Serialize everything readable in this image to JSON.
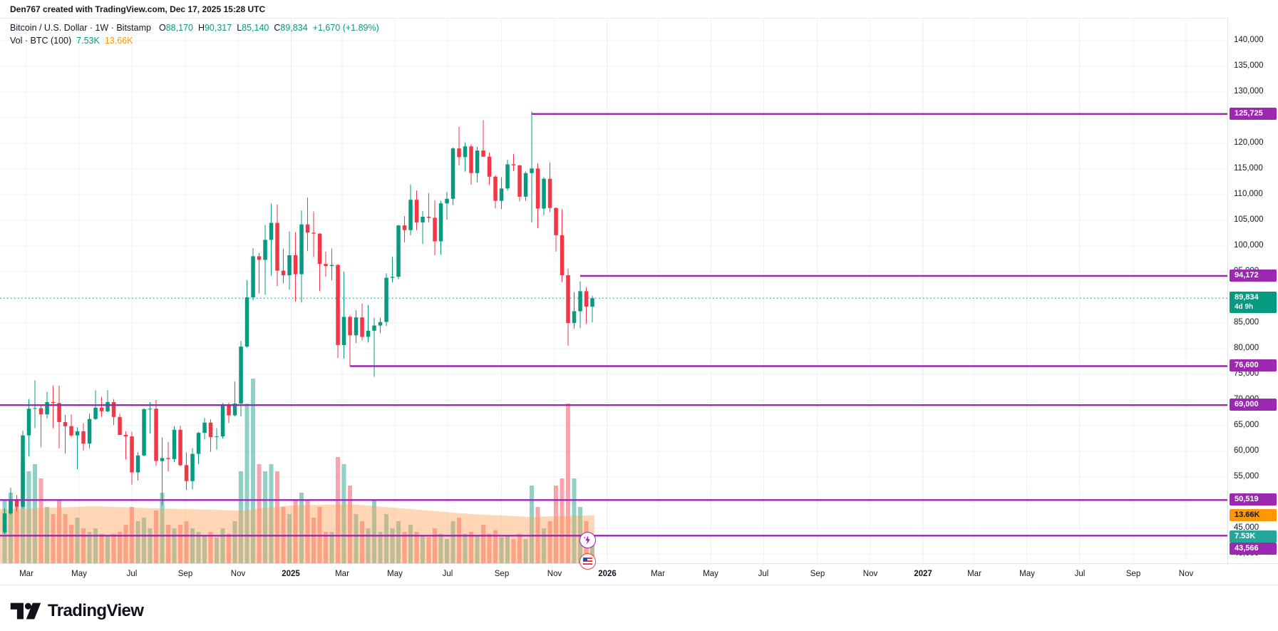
{
  "attribution": "Den767 created with TradingView.com, Dec 17, 2025 15:28 UTC",
  "legend": {
    "title": "Bitcoin / U.S. Dollar · 1W · Bitstamp",
    "o_label": "O",
    "o_value": "88,170",
    "h_label": "H",
    "h_value": "90,317",
    "l_label": "L",
    "l_value": "85,140",
    "c_label": "C",
    "c_value": "89,834",
    "change": "+1,670 (+1.89%)",
    "volume_label": "Vol · BTC (100)",
    "volume_value": "7.53K",
    "volume_ma_value": "13.66K"
  },
  "logo": {
    "text": "TradingView"
  },
  "colors": {
    "up": "#089981",
    "down": "#F23645",
    "vol_up": "rgba(8,153,129,0.45)",
    "vol_down": "rgba(242,54,69,0.45)",
    "vol_ma_area": "rgba(255,160,80,0.42)",
    "purple": "#9C27B0",
    "orange": "#FF9800",
    "teal_badge": "#26A69A",
    "grid": "#f0f2f7",
    "grid_strong": "#e8ebf2",
    "text": "#131722"
  },
  "price_axis": {
    "ticks": [
      {
        "label": "140,000",
        "price": 140
      },
      {
        "label": "135,000",
        "price": 135
      },
      {
        "label": "130,000",
        "price": 130
      },
      {
        "label": "120,000",
        "price": 120
      },
      {
        "label": "115,000",
        "price": 115
      },
      {
        "label": "110,000",
        "price": 110
      },
      {
        "label": "105,000",
        "price": 105
      },
      {
        "label": "100,000",
        "price": 100
      },
      {
        "label": "95,000",
        "price": 95
      },
      {
        "label": "85,000",
        "price": 85
      },
      {
        "label": "80,000",
        "price": 80
      },
      {
        "label": "75,000",
        "price": 75
      },
      {
        "label": "70,000",
        "price": 70
      },
      {
        "label": "65,000",
        "price": 65
      },
      {
        "label": "60,000",
        "price": 60
      },
      {
        "label": "55,000",
        "price": 55
      },
      {
        "label": "45,000",
        "price": 45
      },
      {
        "label": "40,000",
        "price": 40
      }
    ],
    "line_badges": [
      {
        "label": "125,725",
        "price": 125.725
      },
      {
        "label": "94,172",
        "price": 94.172
      },
      {
        "label": "76,600",
        "price": 76.6
      },
      {
        "label": "69,000",
        "price": 69.0
      },
      {
        "label": "50,519",
        "price": 50.519
      }
    ],
    "last_badge": {
      "label": "89,834",
      "countdown": "4d 9h",
      "price": 89.834
    },
    "vol_badges": [
      {
        "label": "13.66K",
        "value": 13.66,
        "kind": "orange"
      },
      {
        "label": "7.53K",
        "value": 7.53,
        "kind": "teal"
      }
    ],
    "pushed_badge": {
      "label": "43,566",
      "price": 43.566,
      "y_override": 769
    }
  },
  "time_axis": {
    "ticks": [
      {
        "label": "Mar",
        "week": 8.57
      },
      {
        "label": "May",
        "week": 17.3
      },
      {
        "label": "Jul",
        "week": 26.0
      },
      {
        "label": "Sep",
        "week": 34.86
      },
      {
        "label": "Nov",
        "week": 43.57
      },
      {
        "label": "2025",
        "week": 52.29,
        "bold": true
      },
      {
        "label": "Mar",
        "week": 60.71
      },
      {
        "label": "May",
        "week": 69.43
      },
      {
        "label": "Jul",
        "week": 78.14
      },
      {
        "label": "Sep",
        "week": 87.0
      },
      {
        "label": "Nov",
        "week": 95.71
      },
      {
        "label": "2026",
        "week": 104.43,
        "bold": true
      },
      {
        "label": "Mar",
        "week": 112.86
      },
      {
        "label": "May",
        "week": 121.57
      },
      {
        "label": "Jul",
        "week": 130.29
      },
      {
        "label": "Sep",
        "week": 139.14
      },
      {
        "label": "Nov",
        "week": 147.86
      },
      {
        "label": "2027",
        "week": 156.57,
        "bold": true
      },
      {
        "label": "Mar",
        "week": 165.0
      },
      {
        "label": "May",
        "week": 173.71
      },
      {
        "label": "Jul",
        "week": 182.43
      },
      {
        "label": "Sep",
        "week": 191.29
      },
      {
        "label": "Nov",
        "week": 200.0
      }
    ]
  },
  "event_icons": [
    {
      "name": "events-lightning-icon",
      "week": 101.2,
      "glyph": "⚡"
    },
    {
      "name": "us-economic-event-icon",
      "week": 101.2
    }
  ],
  "chart_data": {
    "type": "candlestick",
    "title": "Bitcoin / U.S. Dollar",
    "interval": "1W",
    "exchange": "Bitstamp",
    "x_unit": "weeks since 2024-01-01 (Monday weekly bars)",
    "price_unit": "USD thousands",
    "ylim": [
      40,
      142
    ],
    "grid": true,
    "price_gridlines_step": 5,
    "current_price": {
      "value": 89.834,
      "label": "89,834",
      "countdown": "4d 9h"
    },
    "horizontal_lines": [
      {
        "price": 125.725,
        "label": "125,725",
        "start_week": 92
      },
      {
        "price": 94.172,
        "label": "94,172",
        "start_week": 100
      },
      {
        "price": 76.6,
        "label": "76,600",
        "start_week": 62
      },
      {
        "price": 69.0,
        "label": "69,000",
        "start_week": null
      },
      {
        "price": 50.519,
        "label": "50,519",
        "start_week": null
      },
      {
        "price": 43.566,
        "label": "43,566",
        "start_week": null
      }
    ],
    "volume_ma_points": [
      [
        5,
        15.4
      ],
      [
        20,
        16.2
      ],
      [
        30,
        15.6
      ],
      [
        44,
        15.0
      ],
      [
        52,
        16.4
      ],
      [
        62,
        16.8
      ],
      [
        72,
        15.4
      ],
      [
        82,
        14.0
      ],
      [
        92,
        13.2
      ],
      [
        98,
        13.5
      ],
      [
        102,
        13.66
      ]
    ],
    "candles_format": [
      "week",
      "open",
      "high",
      "low",
      "close",
      "volume_kBTC"
    ],
    "candles": [
      [
        5,
        44.2,
        48.9,
        43.9,
        47.9,
        18
      ],
      [
        6,
        47.9,
        52.9,
        47.6,
        50.7,
        20
      ],
      [
        7,
        50.7,
        51.5,
        48.3,
        49.2,
        16
      ],
      [
        8,
        49.2,
        64.0,
        48.9,
        63.1,
        29
      ],
      [
        9,
        63.1,
        70.2,
        59.0,
        68.3,
        26
      ],
      [
        10,
        68.3,
        73.8,
        64.5,
        68.4,
        28
      ],
      [
        11,
        68.4,
        68.9,
        60.8,
        67.2,
        24
      ],
      [
        12,
        67.2,
        71.6,
        66.4,
        69.6,
        16
      ],
      [
        13,
        69.6,
        72.8,
        64.5,
        69.4,
        14
      ],
      [
        14,
        69.4,
        72.8,
        60.6,
        65.7,
        18
      ],
      [
        15,
        65.7,
        67.1,
        59.6,
        64.9,
        14
      ],
      [
        16,
        64.9,
        67.2,
        62.8,
        63.1,
        11
      ],
      [
        17,
        63.1,
        64.7,
        56.5,
        63.9,
        13
      ],
      [
        18,
        63.9,
        65.5,
        60.2,
        61.5,
        10
      ],
      [
        19,
        61.5,
        67.3,
        60.6,
        66.3,
        9
      ],
      [
        20,
        66.3,
        71.9,
        66.1,
        68.5,
        10
      ],
      [
        21,
        68.5,
        70.6,
        66.7,
        67.8,
        8.5
      ],
      [
        22,
        67.8,
        71.9,
        67.6,
        69.6,
        8
      ],
      [
        23,
        69.6,
        70.2,
        65.1,
        66.7,
        8.5
      ],
      [
        24,
        66.7,
        67.3,
        63.4,
        63.2,
        9
      ],
      [
        25,
        63.2,
        63.9,
        58.4,
        62.9,
        11
      ],
      [
        26,
        62.9,
        63.8,
        53.5,
        55.9,
        16
      ],
      [
        27,
        55.9,
        59.8,
        54.3,
        59.2,
        12
      ],
      [
        28,
        59.2,
        68.4,
        59.0,
        68.2,
        13
      ],
      [
        29,
        68.2,
        69.6,
        63.5,
        68.3,
        10
      ],
      [
        30,
        68.3,
        70.0,
        57.2,
        58.1,
        15
      ],
      [
        31,
        58.1,
        62.7,
        49.5,
        58.7,
        20
      ],
      [
        32,
        58.7,
        61.8,
        56.1,
        58.5,
        11
      ],
      [
        33,
        58.5,
        64.9,
        57.9,
        64.2,
        10
      ],
      [
        34,
        64.2,
        65.0,
        57.1,
        57.3,
        11
      ],
      [
        35,
        57.3,
        59.8,
        52.5,
        54.2,
        12
      ],
      [
        36,
        54.2,
        60.6,
        52.6,
        59.5,
        10
      ],
      [
        37,
        59.5,
        63.8,
        57.5,
        63.6,
        9
      ],
      [
        38,
        63.6,
        66.5,
        62.3,
        65.6,
        8
      ],
      [
        39,
        65.6,
        66.2,
        59.9,
        62.8,
        9
      ],
      [
        40,
        62.8,
        64.5,
        60.3,
        62.9,
        7.5
      ],
      [
        41,
        62.9,
        69.4,
        62.5,
        69.0,
        10
      ],
      [
        42,
        69.0,
        69.5,
        65.5,
        67.0,
        8.5
      ],
      [
        43,
        67.0,
        73.6,
        66.8,
        69.3,
        12
      ],
      [
        44,
        69.3,
        81.5,
        66.8,
        80.4,
        26
      ],
      [
        45,
        80.4,
        93.3,
        80.2,
        90.0,
        45
      ],
      [
        46,
        90.0,
        99.6,
        89.4,
        98.0,
        52
      ],
      [
        47,
        98.0,
        98.6,
        90.8,
        97.3,
        28
      ],
      [
        48,
        97.3,
        104.1,
        90.5,
        101.2,
        26
      ],
      [
        49,
        101.2,
        108.3,
        94.2,
        104.5,
        28
      ],
      [
        50,
        104.5,
        108.1,
        92.2,
        95.2,
        26
      ],
      [
        51,
        95.2,
        99.5,
        92.7,
        94.3,
        16
      ],
      [
        52,
        94.3,
        102.8,
        91.5,
        98.2,
        14
      ],
      [
        53,
        98.2,
        102.7,
        89.2,
        94.5,
        18
      ],
      [
        54,
        94.5,
        106.9,
        89.0,
        104.2,
        20
      ],
      [
        55,
        104.2,
        109.4,
        99.0,
        102.6,
        18
      ],
      [
        56,
        102.6,
        106.7,
        97.8,
        102.4,
        13
      ],
      [
        57,
        102.4,
        102.5,
        91.2,
        96.5,
        16
      ],
      [
        58,
        96.5,
        98.9,
        94.0,
        96.1,
        9
      ],
      [
        59,
        96.1,
        99.5,
        93.3,
        96.3,
        9
      ],
      [
        60,
        96.3,
        96.5,
        78.2,
        80.7,
        30
      ],
      [
        61,
        80.7,
        95.0,
        78.1,
        86.2,
        28
      ],
      [
        62,
        86.2,
        86.5,
        76.6,
        82.6,
        22
      ],
      [
        63,
        82.6,
        87.5,
        81.1,
        86.1,
        14
      ],
      [
        64,
        86.1,
        88.8,
        81.6,
        82.3,
        12
      ],
      [
        65,
        82.3,
        88.5,
        81.2,
        83.5,
        10
      ],
      [
        66,
        83.5,
        86.0,
        74.5,
        84.5,
        18
      ],
      [
        67,
        84.5,
        86.0,
        83.0,
        85.2,
        9
      ],
      [
        68,
        85.2,
        94.7,
        84.4,
        93.8,
        14
      ],
      [
        69,
        93.8,
        97.9,
        92.9,
        94.0,
        10
      ],
      [
        70,
        94.0,
        104.1,
        93.5,
        104.0,
        12
      ],
      [
        71,
        104.0,
        105.8,
        100.7,
        103.1,
        9
      ],
      [
        72,
        103.1,
        112.0,
        102.1,
        109.0,
        11
      ],
      [
        73,
        109.0,
        110.8,
        103.1,
        104.6,
        9
      ],
      [
        74,
        104.6,
        106.8,
        100.4,
        105.7,
        8
      ],
      [
        75,
        105.7,
        110.3,
        104.6,
        105.5,
        7.5
      ],
      [
        76,
        105.5,
        108.9,
        98.2,
        100.9,
        10
      ],
      [
        77,
        100.9,
        108.8,
        98.3,
        108.3,
        8.5
      ],
      [
        78,
        108.3,
        110.5,
        105.1,
        109.2,
        7
      ],
      [
        79,
        109.2,
        119.2,
        108.0,
        119.0,
        12
      ],
      [
        80,
        119.0,
        123.2,
        115.7,
        117.3,
        13
      ],
      [
        81,
        117.3,
        120.2,
        114.5,
        119.4,
        8.5
      ],
      [
        82,
        119.4,
        119.8,
        111.9,
        114.2,
        9
      ],
      [
        83,
        114.2,
        119.3,
        112.4,
        118.6,
        8
      ],
      [
        84,
        118.6,
        124.5,
        117.3,
        117.4,
        11
      ],
      [
        85,
        117.4,
        118.2,
        111.9,
        113.5,
        8.5
      ],
      [
        86,
        113.5,
        113.8,
        107.3,
        108.8,
        9.5
      ],
      [
        87,
        108.8,
        113.4,
        107.2,
        111.2,
        7.5
      ],
      [
        88,
        111.2,
        116.8,
        110.8,
        115.9,
        8
      ],
      [
        89,
        115.9,
        117.9,
        114.6,
        115.7,
        7
      ],
      [
        90,
        115.7,
        115.8,
        108.7,
        109.6,
        8.5
      ],
      [
        91,
        109.6,
        114.5,
        108.8,
        114.2,
        7
      ],
      [
        92,
        114.2,
        126.2,
        104.6,
        115.1,
        22
      ],
      [
        93,
        115.1,
        116.1,
        103.5,
        107.3,
        16
      ],
      [
        94,
        107.3,
        113.4,
        106.0,
        113.1,
        10
      ],
      [
        95,
        113.1,
        116.3,
        106.6,
        107.4,
        12
      ],
      [
        96,
        107.4,
        107.5,
        98.9,
        102.1,
        22
      ],
      [
        97,
        102.1,
        107.2,
        93.0,
        94.3,
        24
      ],
      [
        98,
        94.3,
        95.6,
        80.6,
        85.0,
        45
      ],
      [
        99,
        85.0,
        91.0,
        83.9,
        87.3,
        24
      ],
      [
        100,
        87.3,
        93.1,
        84.0,
        91.2,
        16
      ],
      [
        101,
        91.2,
        92.0,
        84.8,
        88.2,
        12
      ],
      [
        102,
        88.17,
        90.317,
        85.14,
        89.834,
        7.53
      ]
    ]
  }
}
